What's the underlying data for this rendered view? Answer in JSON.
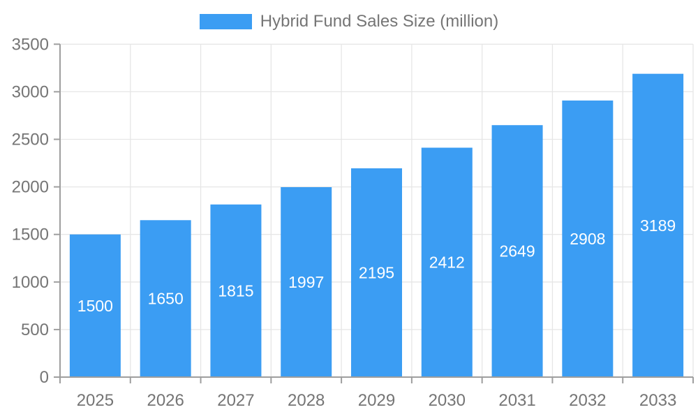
{
  "legend": {
    "label": "Hybrid Fund Sales Size (million)"
  },
  "chart_data": {
    "type": "bar",
    "title": "Hybrid Fund Sales Size (million)",
    "series_name": "Hybrid Fund Sales Size (million)",
    "categories": [
      "2025",
      "2026",
      "2027",
      "2028",
      "2029",
      "2030",
      "2031",
      "2032",
      "2033"
    ],
    "values": [
      1500,
      1650,
      1815,
      1997,
      2195,
      2412,
      2649,
      2908,
      3189
    ],
    "xlabel": "",
    "ylabel": "",
    "ylim": [
      0,
      3500
    ],
    "yticks": [
      0,
      500,
      1000,
      1500,
      2000,
      2500,
      3000,
      3500
    ],
    "grid": true,
    "legend_position": "top",
    "value_labels": "inside-center",
    "style": {
      "bar_color": "#3b9df3",
      "grid_color": "#e6e6e6",
      "axis_color": "#9e9e9e",
      "tick_label_color": "#757575",
      "legend_text_color": "#757575",
      "value_label_color": "#ffffff",
      "background": "#ffffff"
    }
  }
}
